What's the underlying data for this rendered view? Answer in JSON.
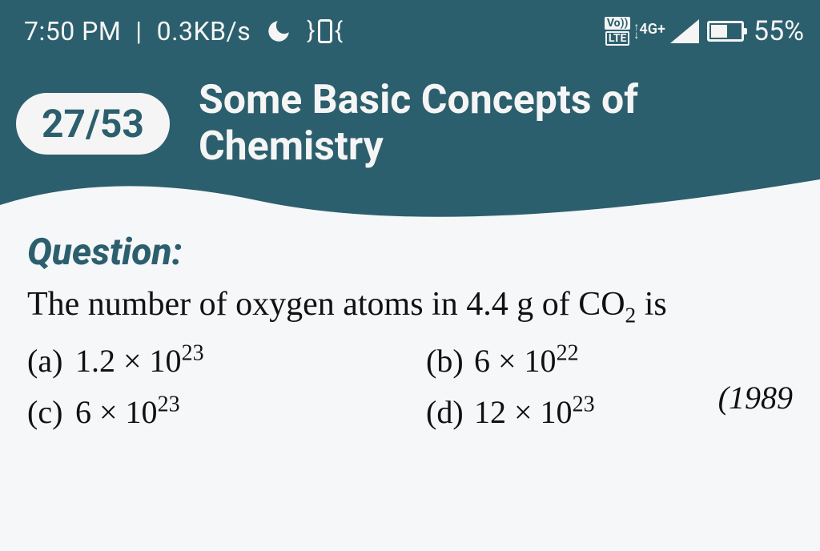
{
  "status": {
    "time": "7:50 PM",
    "speed": "0.3KB/s",
    "lte_top": "Vo))",
    "lte_bot": "LTE",
    "net_label": "4G+",
    "battery_pct": 55,
    "battery_text": "55%"
  },
  "header": {
    "counter": "27/53",
    "title": "Some Basic Concepts of Chemistry"
  },
  "question": {
    "heading": "Question:",
    "text_html": "The number of oxygen atoms in 4.4 g of CO<sub>2</sub> is",
    "options": [
      {
        "tag": "(a)",
        "html": "1.2 × 10<sup>23</sup>"
      },
      {
        "tag": "(b)",
        "html": "6 × 10<sup>22</sup>"
      },
      {
        "tag": "(c)",
        "html": "6 × 10<sup>23</sup>"
      },
      {
        "tag": "(d)",
        "html": "12 × 10<sup>23</sup>"
      }
    ],
    "year": "(1989"
  },
  "colors": {
    "header_bg": "#2c5f6d",
    "header_fg": "#f5f5f5",
    "card_bg": "#f6f7f9",
    "text": "#111111"
  }
}
